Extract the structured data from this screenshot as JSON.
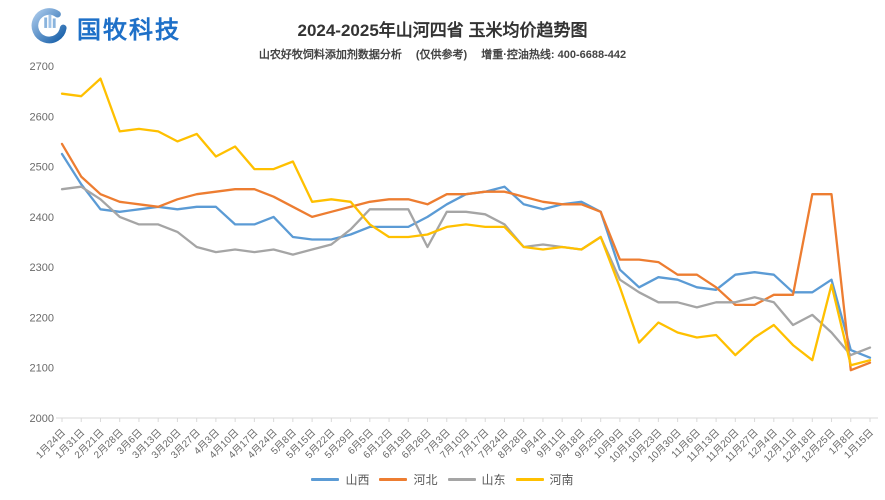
{
  "header": {
    "company_name": "国牧科技",
    "brand_color": "#1e70c8",
    "title": "2024-2025年山河四省 玉米均价趋势图",
    "subtitle_left": "山农好牧饲料添加剂数据分析",
    "subtitle_mid": "(仅供参考)",
    "subtitle_right": "增重·控油热线: 400-6688-442"
  },
  "chart_data": {
    "type": "line",
    "title": "2024-2025年山河四省 玉米均价趋势图",
    "xlabel": "",
    "ylabel": "",
    "ylim": [
      2000,
      2700
    ],
    "ytick_step": 100,
    "grid": false,
    "legend_position": "bottom",
    "axis_color": "#d9d9d9",
    "tick_label_color": "#6a6a6a",
    "categories": [
      "1月24日",
      "1月31日",
      "2月21日",
      "2月28日",
      "3月6日",
      "3月13日",
      "3月20日",
      "3月27日",
      "4月3日",
      "4月10日",
      "4月17日",
      "4月24日",
      "5月8日",
      "5月15日",
      "5月22日",
      "5月29日",
      "6月5日",
      "6月12日",
      "6月19日",
      "6月26日",
      "7月3日",
      "7月10日",
      "7月17日",
      "7月24日",
      "8月28日",
      "9月4日",
      "9月11日",
      "9月18日",
      "9月25日",
      "10月9日",
      "10月16日",
      "10月23日",
      "10月30日",
      "11月6日",
      "11月13日",
      "11月20日",
      "11月27日",
      "12月4日",
      "12月11日",
      "12月18日",
      "12月25日",
      "1月8日",
      "1月15日"
    ],
    "series": [
      {
        "name": "山西",
        "color": "#5B9BD5",
        "values": [
          2525,
          2465,
          2415,
          2410,
          2415,
          2420,
          2415,
          2420,
          2420,
          2385,
          2385,
          2400,
          2360,
          2355,
          2355,
          2365,
          2380,
          2380,
          2380,
          2400,
          2425,
          2445,
          2450,
          2460,
          2425,
          2415,
          2425,
          2430,
          2410,
          2295,
          2260,
          2280,
          2275,
          2260,
          2255,
          2285,
          2290,
          2285,
          2250,
          2250,
          2275,
          2135,
          2120
        ]
      },
      {
        "name": "河北",
        "color": "#ED7D31",
        "values": [
          2545,
          2480,
          2445,
          2430,
          2425,
          2420,
          2435,
          2445,
          2450,
          2455,
          2455,
          2440,
          2420,
          2400,
          2410,
          2420,
          2430,
          2435,
          2435,
          2425,
          2445,
          2445,
          2450,
          2450,
          2440,
          2430,
          2425,
          2425,
          2410,
          2315,
          2315,
          2310,
          2285,
          2285,
          2260,
          2225,
          2225,
          2245,
          2245,
          2445,
          2445,
          2095,
          2110
        ]
      },
      {
        "name": "山东",
        "color": "#A5A5A5",
        "values": [
          2455,
          2460,
          2435,
          2400,
          2385,
          2385,
          2370,
          2340,
          2330,
          2335,
          2330,
          2335,
          2325,
          2335,
          2345,
          2375,
          2415,
          2415,
          2415,
          2340,
          2410,
          2410,
          2405,
          2385,
          2340,
          2345,
          2340,
          2335,
          2360,
          2275,
          2250,
          2230,
          2230,
          2220,
          2230,
          2230,
          2240,
          2230,
          2185,
          2205,
          2170,
          2125,
          2140
        ]
      },
      {
        "name": "河南",
        "color": "#FFC000",
        "values": [
          2645,
          2640,
          2675,
          2570,
          2575,
          2570,
          2550,
          2565,
          2520,
          2540,
          2495,
          2495,
          2510,
          2430,
          2435,
          2430,
          2385,
          2360,
          2360,
          2365,
          2380,
          2385,
          2380,
          2380,
          2340,
          2335,
          2340,
          2335,
          2360,
          2260,
          2150,
          2190,
          2170,
          2160,
          2165,
          2125,
          2160,
          2185,
          2145,
          2115,
          2265,
          2105,
          2115
        ]
      }
    ]
  }
}
